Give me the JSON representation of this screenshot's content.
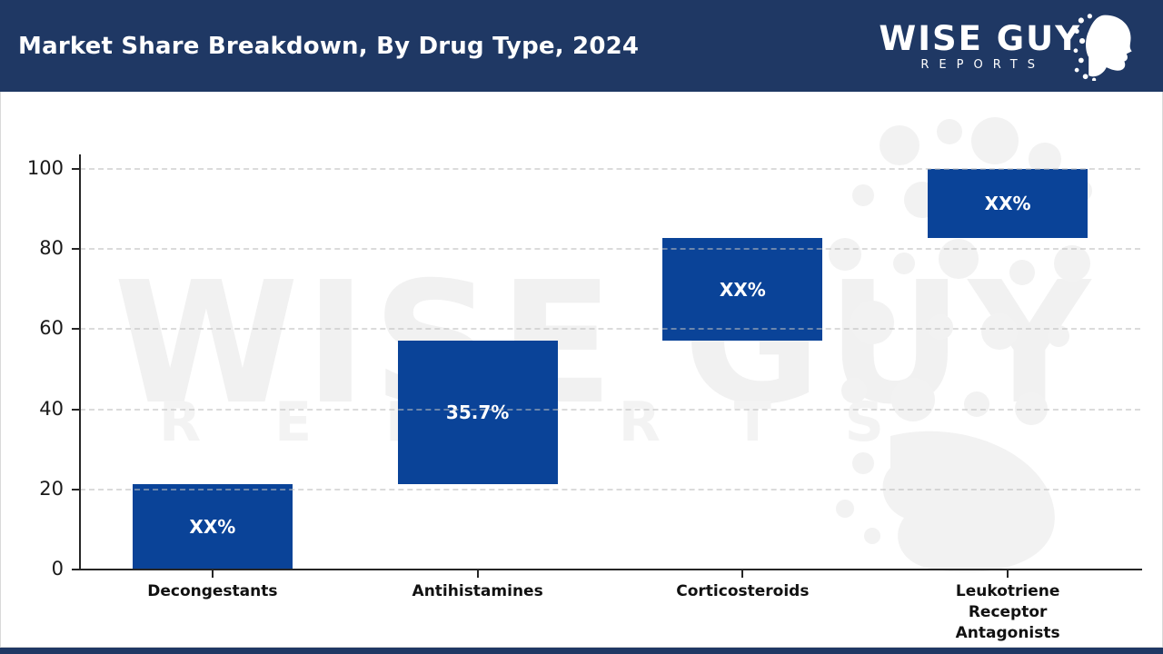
{
  "page": {
    "background": "#ffffff",
    "border_color": "#d9d9d9",
    "footer_color": "#1f3864"
  },
  "header": {
    "background": "#1f3864",
    "title": "Market Share Breakdown, By Drug Type, 2024",
    "logo": {
      "line1": "WISE GUY",
      "line2": "REPORTS",
      "icon": "dotted-face-profile-icon"
    }
  },
  "watermark": {
    "line1": "WISE GUY",
    "line2": "R E P O R T S",
    "icon": "dotted-face-profile-watermark"
  },
  "chart_data": {
    "type": "bar",
    "subtype": "waterfall",
    "title": "Market Share Breakdown, By Drug Type, 2024",
    "categories": [
      "Decongestants",
      "Antihistamines",
      "Corticosteroids",
      "Leukotriene Receptor Antagonists"
    ],
    "segments": [
      {
        "category": "Decongestants",
        "start": 0,
        "end": 21.4,
        "label": "XX%"
      },
      {
        "category": "Antihistamines",
        "start": 21.4,
        "end": 57.1,
        "label": "35.7%"
      },
      {
        "category": "Corticosteroids",
        "start": 57.1,
        "end": 82.8,
        "label": "XX%"
      },
      {
        "category": "Leukotriene Receptor Antagonists",
        "start": 82.8,
        "end": 100,
        "label": "XX%"
      }
    ],
    "xlabel": "",
    "ylabel": "",
    "ylim": [
      0,
      100
    ],
    "yticks": [
      0,
      20,
      40,
      60,
      80,
      100
    ],
    "grid": "horizontal-dashed",
    "legend": "none",
    "bar_color": "#0a4398",
    "bar_label_color": "#ffffff",
    "axis_color": "#262626",
    "grid_color": "#d9d9d9"
  }
}
